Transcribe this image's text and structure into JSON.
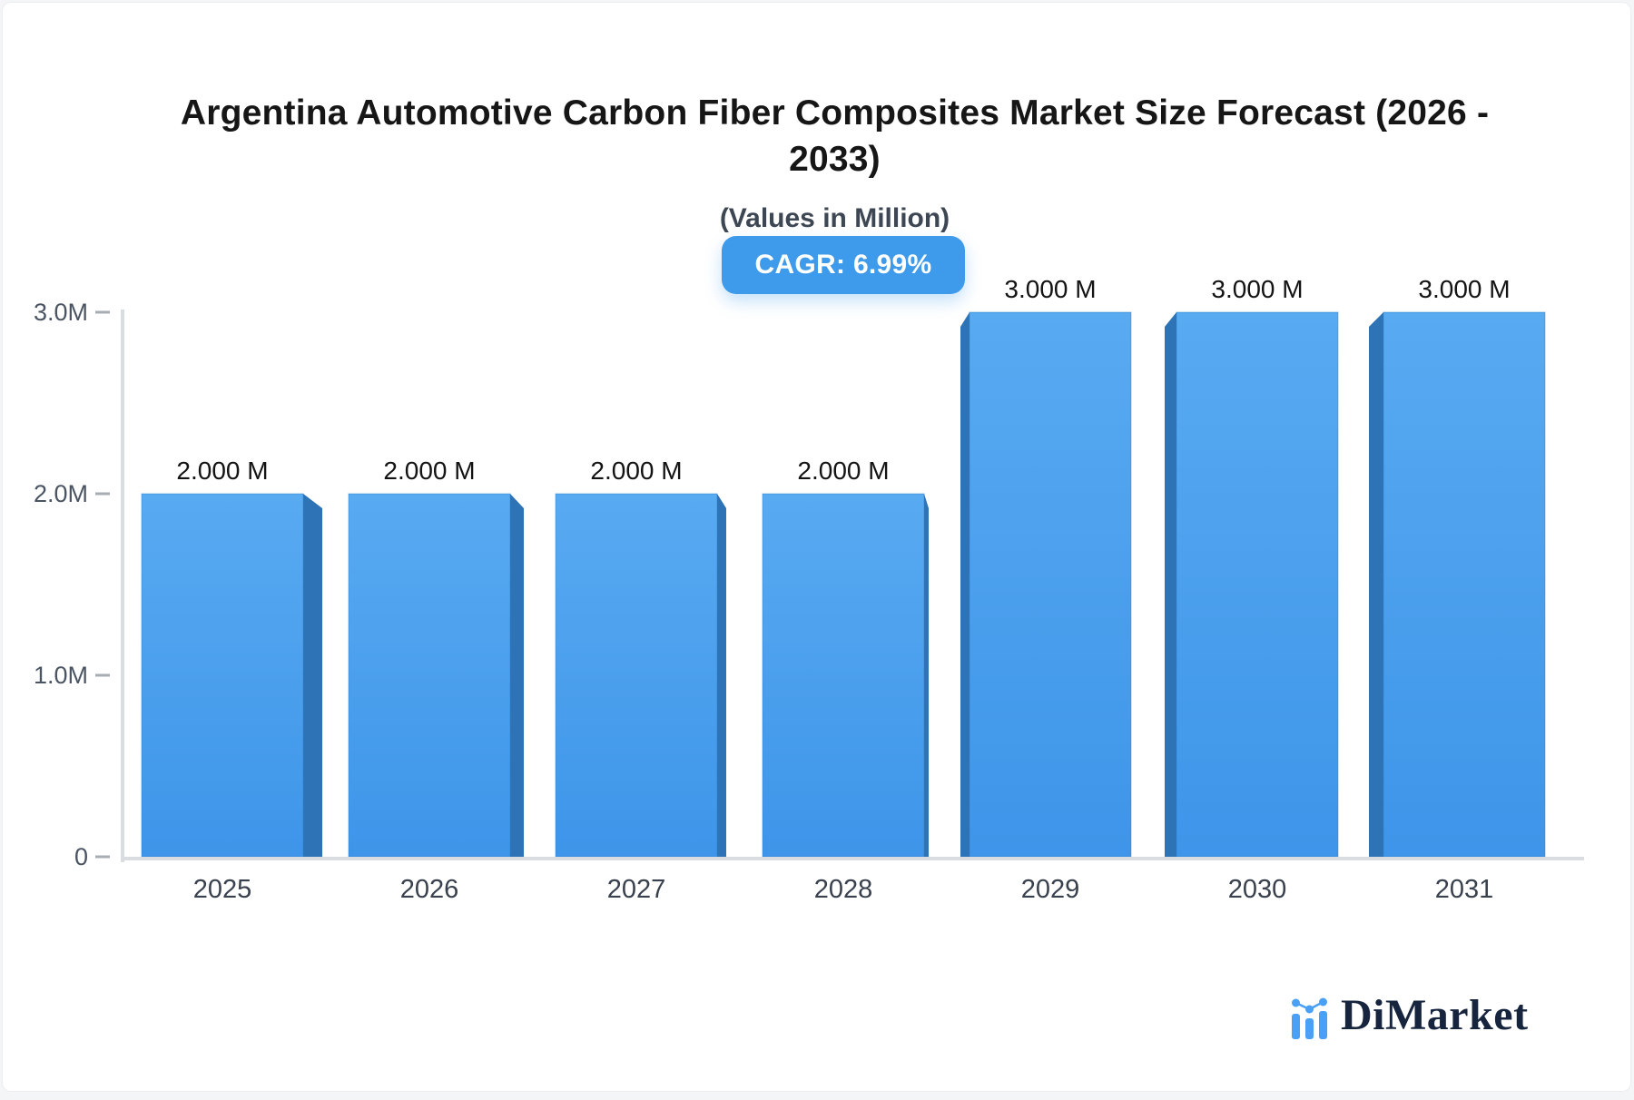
{
  "page": {
    "background_color": "#f4f5f7",
    "card_color": "#ffffff"
  },
  "header": {
    "title_lines": [
      "Argentina Automotive Carbon Fiber Composites Market Size Forecast (2026 -",
      "2033)"
    ],
    "subtitle": "(Values in Million)",
    "cagr_badge": "CAGR: 6.99%"
  },
  "chart_data": {
    "type": "bar",
    "title": "Argentina Automotive Carbon Fiber Composites Market Size Forecast (2026 - 2033)",
    "subtitle": "(Values in Million)",
    "cagr_label": "CAGR: 6.99%",
    "cagr_percent": 6.99,
    "unit": "Million",
    "categories": [
      "2025",
      "2026",
      "2027",
      "2028",
      "2029",
      "2030",
      "2031"
    ],
    "values_million": [
      2.0,
      2.0,
      2.0,
      2.0,
      3.0,
      3.0,
      3.0
    ],
    "bar_labels": [
      "2.000 M",
      "2.000 M",
      "2.000 M",
      "2.000 M",
      "3.000 M",
      "3.000 M",
      "3.000 M"
    ],
    "y_ticks": [
      {
        "value": 0.0,
        "label": "0"
      },
      {
        "value": 1.0,
        "label": "1.0M"
      },
      {
        "value": 2.0,
        "label": "2.0M"
      },
      {
        "value": 3.0,
        "label": "3.0M"
      }
    ],
    "ylim": [
      0,
      3.0
    ],
    "grid": false,
    "legend": false,
    "colors": {
      "bar_face_top": "#58aaf1",
      "bar_face_bottom": "#3e95e9",
      "bar_side": "#2d73b6",
      "bar_edge": "#2f7bbf",
      "badge": "#3e9aea",
      "axis_line": "#d9dce1",
      "tick_mark": "#a8adb5",
      "y_tick_label": "#4a5462",
      "x_tick_label": "#39414e",
      "data_label": "#131313"
    }
  },
  "logo": {
    "text": "DiMarket",
    "icon": "mini-bar-chart-icon",
    "icon_color": "#4aa0f4",
    "text_color": "#16243d"
  }
}
